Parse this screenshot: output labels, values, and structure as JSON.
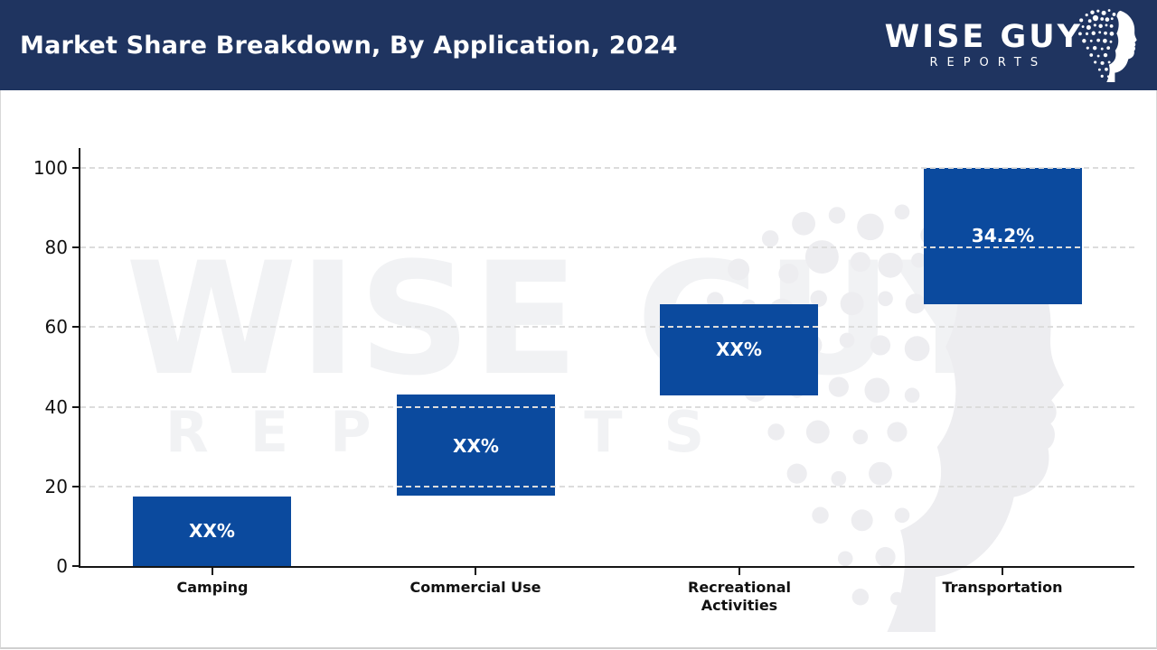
{
  "header": {
    "title": "Market Share Breakdown, By Application, 2024",
    "logo": {
      "line1": "WISE GUY",
      "line2": "REPORTS"
    }
  },
  "watermark": {
    "line1": "WISE GUY",
    "line2": "REPORTS"
  },
  "colors": {
    "header_bg": "#1f3460",
    "bar": "#0b4a9e",
    "grid": "#dcdcdc",
    "axis": "#151515",
    "watermark": "#f1f2f4",
    "watermark_head": "#ededf0"
  },
  "chart_data": {
    "type": "bar",
    "subtype": "waterfall",
    "title": "Market Share Breakdown, By Application, 2024",
    "categories": [
      "Camping",
      "Commercial Use",
      "Recreational Activities",
      "Transportation"
    ],
    "segments": [
      {
        "category": "Camping",
        "start": 0,
        "end": 17.5,
        "value_label": "XX%"
      },
      {
        "category": "Commercial Use",
        "start": 17.5,
        "end": 43.0,
        "value_label": "XX%"
      },
      {
        "category": "Recreational Activities",
        "start": 43.0,
        "end": 65.8,
        "value_label": "XX%"
      },
      {
        "category": "Transportation",
        "start": 65.8,
        "end": 100,
        "value_label": "34.2%"
      }
    ],
    "y_ticks": [
      0,
      20,
      40,
      60,
      80,
      100
    ],
    "ylim": [
      0,
      100
    ],
    "xlabel": "",
    "ylabel": "",
    "grid": "horizontal-dashed-over-bars",
    "legend": "none",
    "bar_color": "#0b4a9e"
  }
}
